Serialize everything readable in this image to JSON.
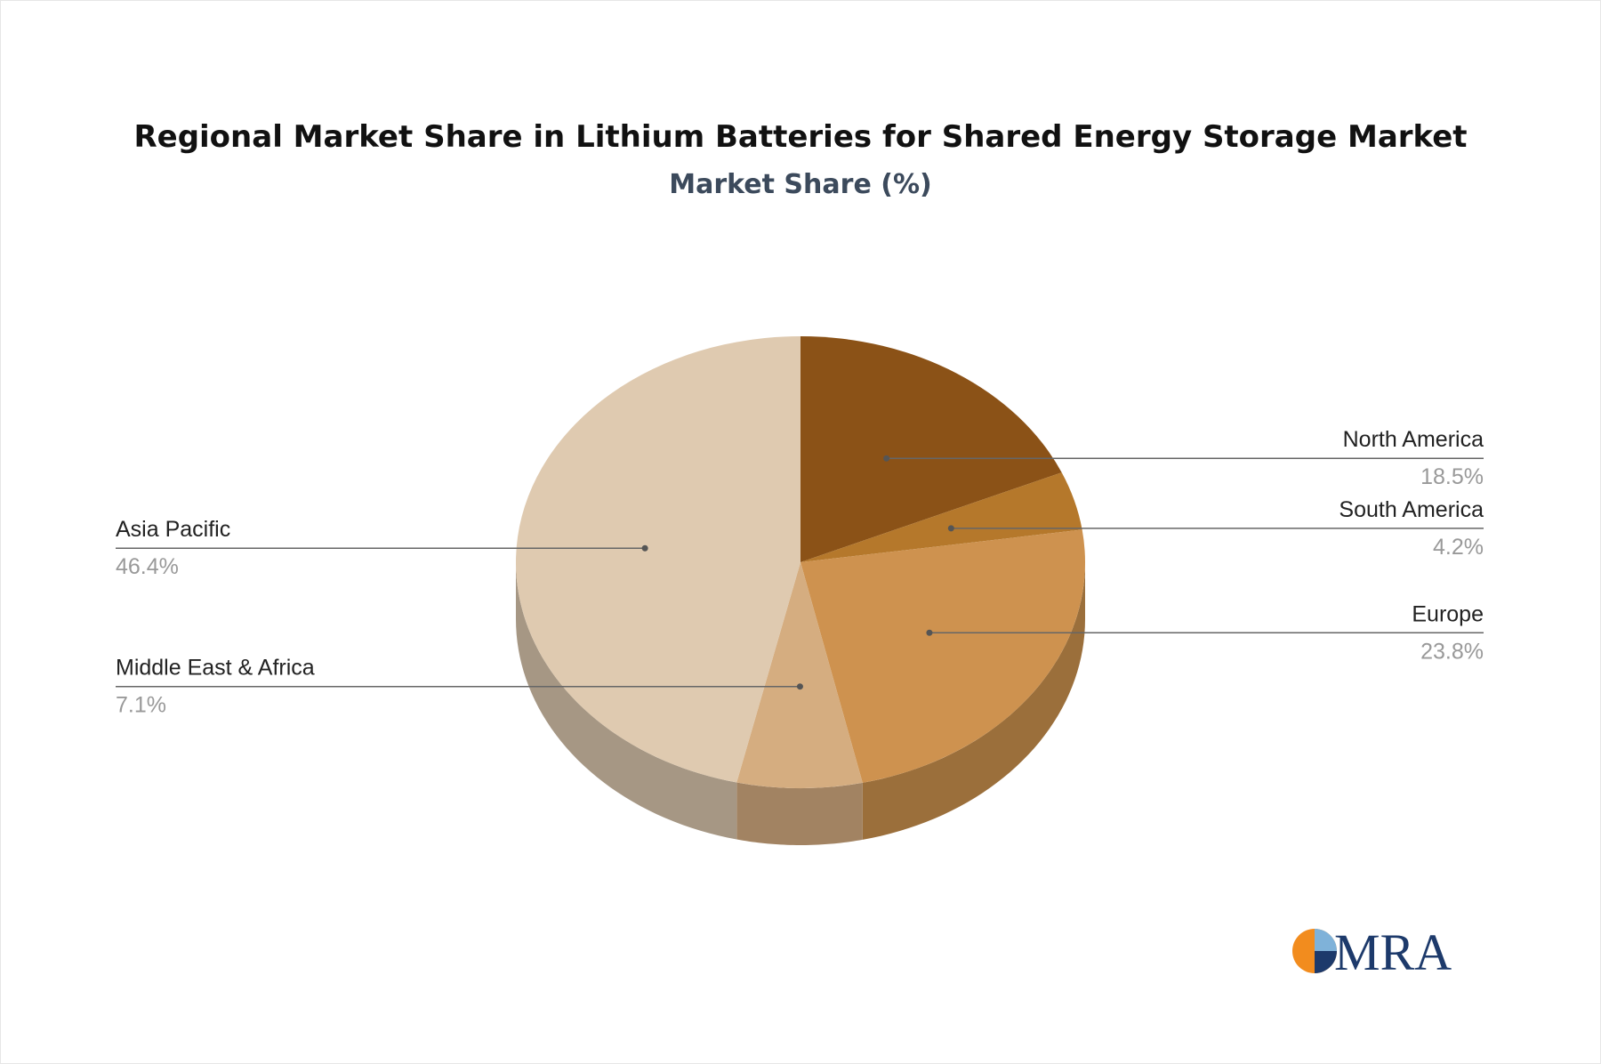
{
  "title": "Regional Market Share in Lithium Batteries for Shared Energy Storage Market",
  "subtitle": "Market Share (%)",
  "chart_data": {
    "type": "pie",
    "title": "Regional Market Share in Lithium Batteries for Shared Energy Storage Market",
    "subtitle": "Market Share (%)",
    "unit": "%",
    "slices": [
      {
        "label": "North America",
        "value": 18.5,
        "display": "18.5%",
        "color": "#8b5217",
        "side_color": "#6e4113",
        "legend_side": "right"
      },
      {
        "label": "South America",
        "value": 4.2,
        "display": "4.2%",
        "color": "#b5782b",
        "side_color": "#8f5f22",
        "legend_side": "right"
      },
      {
        "label": "Europe",
        "value": 23.8,
        "display": "23.8%",
        "color": "#ce924f",
        "side_color": "#9b6f3b",
        "legend_side": "right"
      },
      {
        "label": "Middle East & Africa",
        "value": 7.1,
        "display": "7.1%",
        "color": "#d5ad80",
        "side_color": "#a28362",
        "legend_side": "left"
      },
      {
        "label": "Asia Pacific",
        "value": 46.4,
        "display": "46.4%",
        "color": "#dfcab0",
        "side_color": "#a69784",
        "legend_side": "left"
      }
    ]
  },
  "logo": {
    "text": "MRA",
    "colors": {
      "orange": "#f28c1e",
      "navy": "#1d3a6b",
      "light_blue": "#7fb2d9"
    }
  }
}
